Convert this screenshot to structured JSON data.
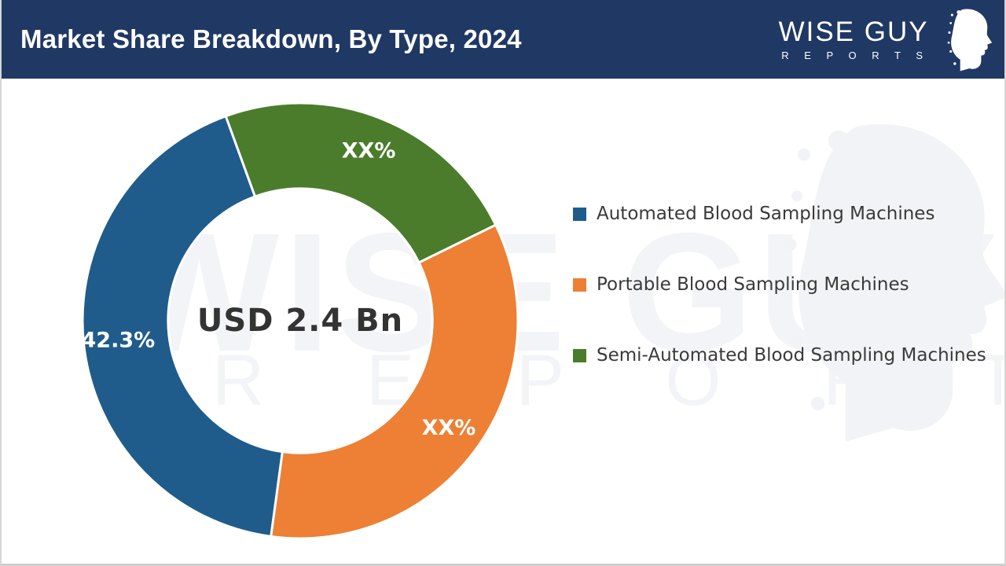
{
  "header": {
    "title": "Market Share Breakdown, By Type, 2024",
    "logo": {
      "wordmark": "WISE GUY",
      "subtitle": "R E P O R T S"
    }
  },
  "watermark": {
    "line1": "WISE GUY",
    "line2": "R E P O R T S"
  },
  "chart_data": {
    "type": "pie",
    "title": "Market Share Breakdown, By Type, 2024",
    "center_label": "USD 2.4 Bn",
    "categories": [
      "Automated Blood Sampling Machines",
      "Portable Blood Sampling Machines",
      "Semi-Automated Blood Sampling Machines"
    ],
    "values": [
      42.3,
      34.4,
      23.3
    ],
    "slice_labels": [
      "42.3%",
      "XX%",
      "XX%"
    ],
    "colors": [
      "#1F5C8B",
      "#ED8034",
      "#4A7C2C"
    ],
    "donut": true,
    "inner_radius_ratio": 0.607,
    "outer_radius_px": 277,
    "label_radius_px": 233,
    "start_angle_deg": 110,
    "counterclockwise": true,
    "separator_color": "#ffffff",
    "legend_position": "right",
    "colors_meta": {
      "header_bar": "#203864",
      "legend_text": "#3a3a3a",
      "center_text": "#333333"
    }
  }
}
